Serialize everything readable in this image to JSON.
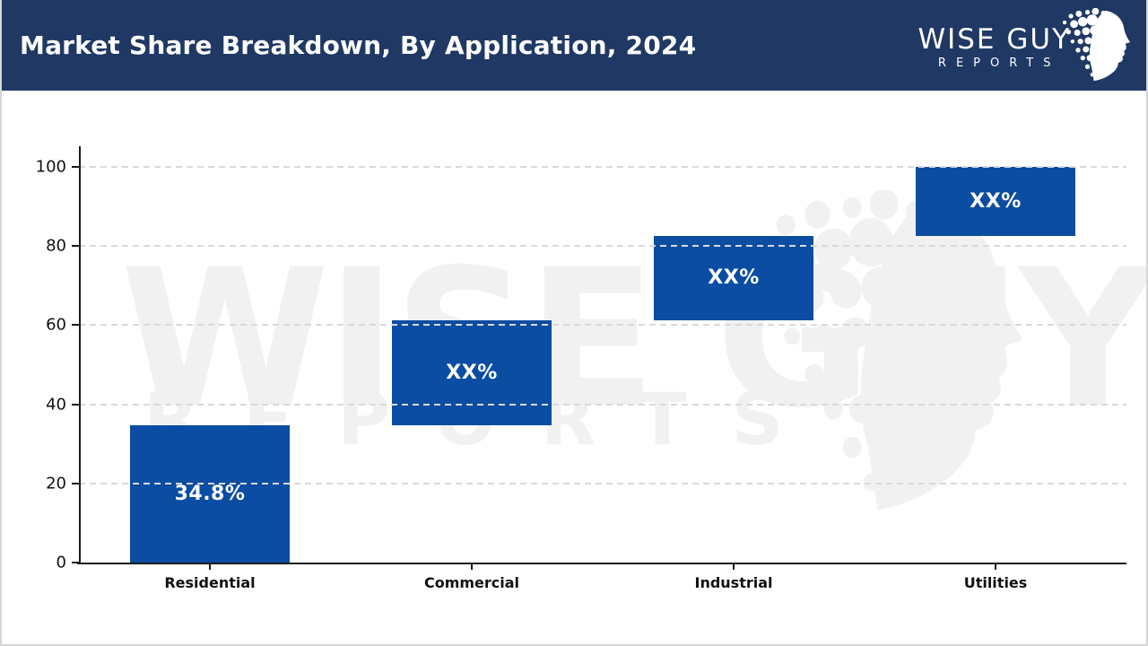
{
  "header": {
    "title": "Market Share Breakdown, By Application, 2024",
    "logo": {
      "line1": "WISE GUY",
      "line2": "REPORTS"
    }
  },
  "watermark": {
    "line1": "WISE GUY",
    "line2": "REPORTS"
  },
  "chart_data": {
    "type": "bar",
    "variant": "floating-segment-breakdown",
    "title": "Market Share Breakdown, By Application, 2024",
    "xlabel": "",
    "ylabel": "",
    "categories": [
      "Residential",
      "Commercial",
      "Industrial",
      "Utilities"
    ],
    "segments": [
      {
        "category": "Residential",
        "start": 0,
        "end": 34.8,
        "value": 34.8,
        "label": "34.8%"
      },
      {
        "category": "Commercial",
        "start": 34.8,
        "end": 61.2,
        "value": 26.4,
        "label": "XX%"
      },
      {
        "category": "Industrial",
        "start": 61.2,
        "end": 82.6,
        "value": 21.4,
        "label": "XX%"
      },
      {
        "category": "Utilities",
        "start": 82.6,
        "end": 100,
        "value": 17.4,
        "label": "XX%"
      }
    ],
    "ylim": [
      0,
      100
    ],
    "yticks": [
      0,
      20,
      40,
      60,
      80,
      100
    ],
    "grid": "horizontal-dashed",
    "legend": "none",
    "bar_color": "#0b4da2",
    "bar_label_color": "#ffffff"
  },
  "colors": {
    "header_bg": "#1f3864",
    "bar": "#0b4da2",
    "grid": "#d9d9d9",
    "axis": "#1a1a1a",
    "watermark": "#f1f1f1",
    "card_border": "#d6d6d6"
  }
}
